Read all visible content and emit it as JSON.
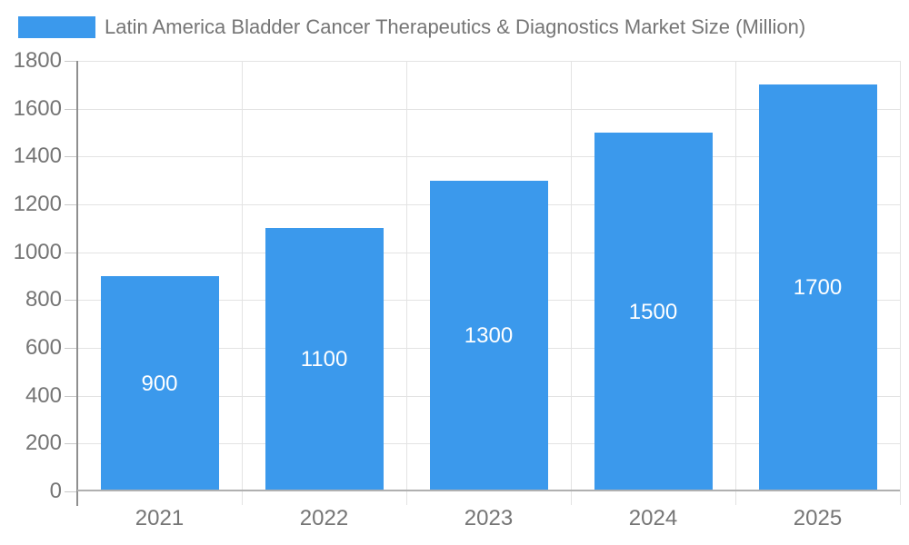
{
  "chart_data": {
    "type": "bar",
    "title": "Latin America Bladder Cancer Therapeutics & Diagnostics Market Size (Million)",
    "categories": [
      "2021",
      "2022",
      "2023",
      "2024",
      "2025"
    ],
    "values": [
      900,
      1100,
      1300,
      1500,
      1700
    ],
    "series_name": "Latin America Bladder Cancer Therapeutics & Diagnostics Market Size (Million)",
    "xlabel": "",
    "ylabel": "",
    "ylim": [
      0,
      1800
    ],
    "ytick_step": 200,
    "yticks": [
      0,
      200,
      400,
      600,
      800,
      1000,
      1200,
      1400,
      1600,
      1800
    ],
    "grid": true,
    "data_labels": true,
    "legend_position": "top-left"
  },
  "colors": {
    "bar": "#3B99EC",
    "value_label": "#ffffff",
    "axis_text": "#757575",
    "legend_text": "#757575",
    "gridline": "#e3e3e3",
    "divider": "#e3e3e3",
    "tick": "#c9c9c9",
    "yaxis_line": "#8f8f8f",
    "xaxis_baseline": "#b0b0b0",
    "background": "#ffffff"
  }
}
